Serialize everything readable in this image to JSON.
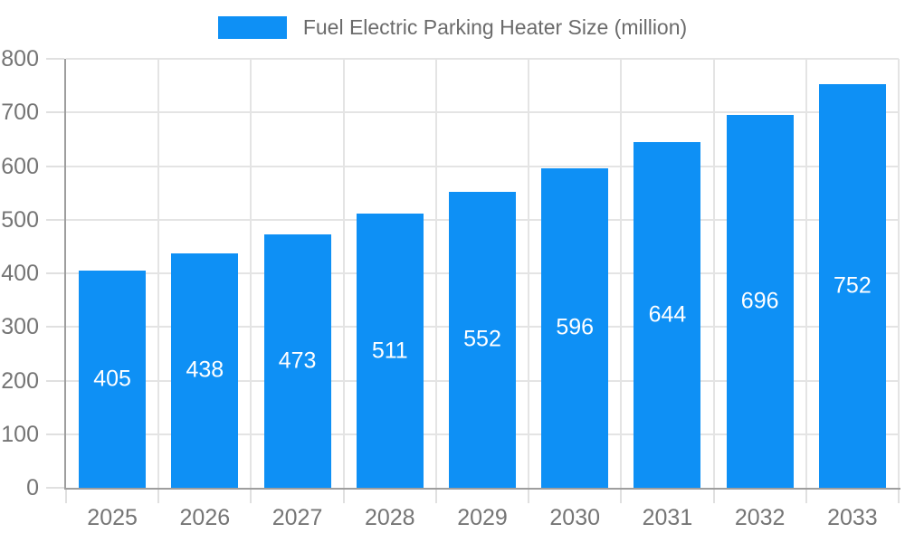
{
  "legend": {
    "label": "Fuel Electric Parking Heater Size (million)"
  },
  "colors": {
    "bar": "#0E90F5",
    "axis_line": "#9E9E9E",
    "grid_line": "#E4E4E4",
    "tick": "#E0E0E0",
    "axis_label": "#757575",
    "legend_text": "#6B6B6B",
    "value_label": "#FFFFFF",
    "background": "#FFFFFF"
  },
  "chart_data": {
    "type": "bar",
    "title": "Fuel Electric Parking Heater Size (million)",
    "categories": [
      "2025",
      "2026",
      "2027",
      "2028",
      "2029",
      "2030",
      "2031",
      "2032",
      "2033"
    ],
    "values": [
      405,
      438,
      473,
      511,
      552,
      596,
      644,
      696,
      752
    ],
    "series": [
      {
        "name": "Fuel Electric Parking Heater Size (million)",
        "values": [
          405,
          438,
          473,
          511,
          552,
          596,
          644,
          696,
          752
        ]
      }
    ],
    "xlabel": "",
    "ylabel": "",
    "ylim": [
      0,
      800
    ],
    "yticks": [
      0,
      100,
      200,
      300,
      400,
      500,
      600,
      700,
      800
    ],
    "grid": true,
    "legend_position": "top-center",
    "value_label_position": "inside-center"
  }
}
